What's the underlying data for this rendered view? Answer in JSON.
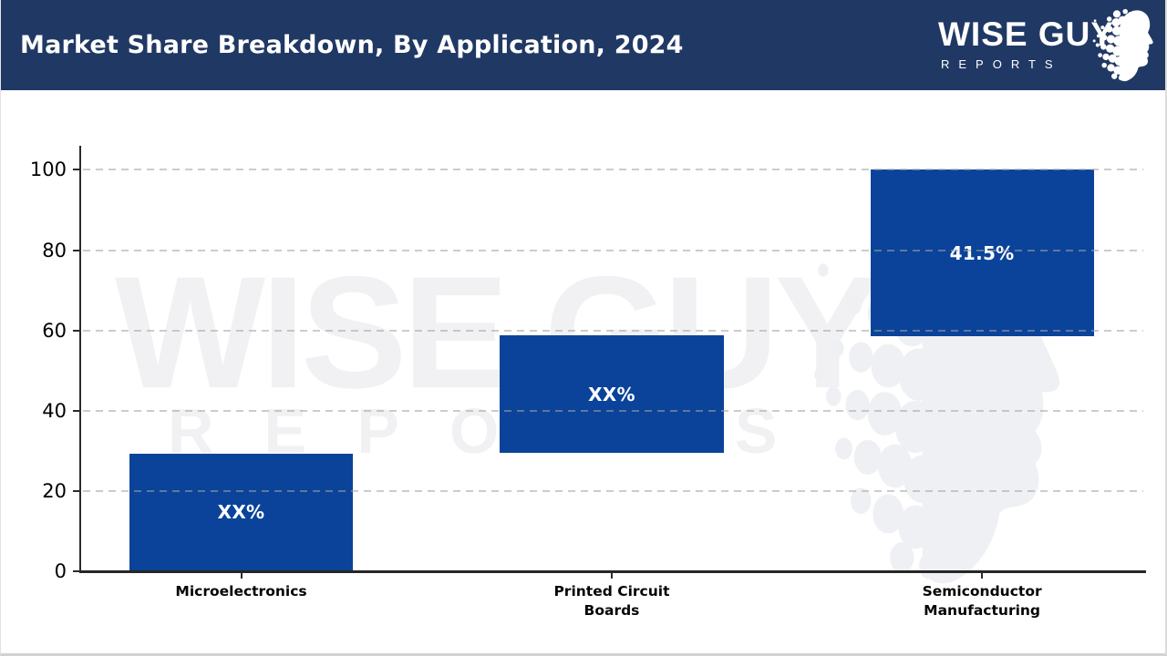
{
  "header": {
    "title": "Market Share Breakdown, By Application, 2024",
    "brand_line1": "WISE GUY",
    "brand_line2": "REPORTS"
  },
  "watermark": {
    "line1": "WISE GUY",
    "line2": "REPORTS"
  },
  "chart_data": {
    "type": "bar",
    "subtype": "waterfall-segment-breakdown",
    "title": "Market Share Breakdown, By Application, 2024",
    "categories": [
      "Microelectronics",
      "Printed Circuit\nBoards",
      "Semiconductor\nManufacturing"
    ],
    "segments": [
      {
        "category": "Microelectronics",
        "start": 0,
        "end": 29.3,
        "label": "XX%"
      },
      {
        "category": "Printed Circuit Boards",
        "start": 29.4,
        "end": 58.7,
        "label": "XX%"
      },
      {
        "category": "Semiconductor Manufacturing",
        "start": 58.5,
        "end": 100,
        "label": "41.5%"
      }
    ],
    "yticks": [
      0,
      20,
      40,
      60,
      80,
      100
    ],
    "ylim": [
      0,
      106
    ],
    "xlabel": "",
    "ylabel": "",
    "legend": "none",
    "grid": "dashed-horizontal",
    "bar_color": "#0a4399",
    "layout": {
      "bar_centers_frac": [
        0.1504,
        0.4987,
        0.8467
      ],
      "bar_width_frac": 0.21
    }
  },
  "colors": {
    "header_bg": "#203864",
    "bar": "#0a4399",
    "axis": "#2b2b2b",
    "watermark": "#f1f1f4"
  }
}
